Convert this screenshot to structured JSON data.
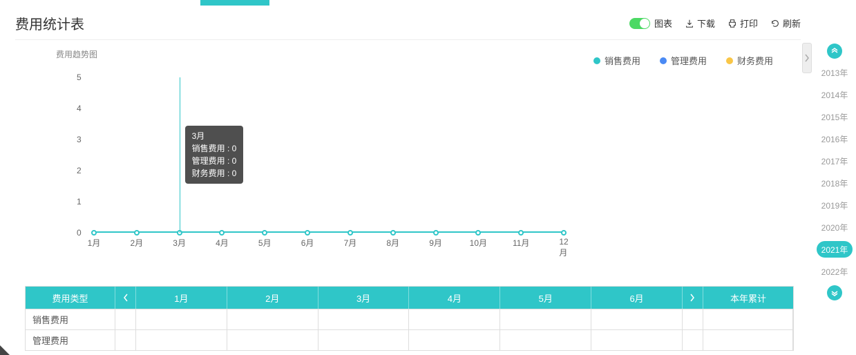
{
  "header": {
    "title": "费用统计表",
    "toggle_label": "图表",
    "download_label": "下载",
    "print_label": "打印",
    "refresh_label": "刷新"
  },
  "chart": {
    "subtitle": "费用趋势图",
    "type": "line",
    "legend": [
      {
        "label": "销售费用",
        "color": "#2fc6c8"
      },
      {
        "label": "管理费用",
        "color": "#4a8af4"
      },
      {
        "label": "财务费用",
        "color": "#f9c647"
      }
    ],
    "x_categories": [
      "1月",
      "2月",
      "3月",
      "4月",
      "5月",
      "6月",
      "7月",
      "8月",
      "9月",
      "10月",
      "11月",
      "12月"
    ],
    "y_ticks": [
      0,
      1,
      2,
      3,
      4,
      5
    ],
    "ylim": [
      0,
      5
    ],
    "series": {
      "销售费用": [
        0,
        0,
        0,
        0,
        0,
        0,
        0,
        0,
        0,
        0,
        0,
        0
      ],
      "管理费用": [
        0,
        0,
        0,
        0,
        0,
        0,
        0,
        0,
        0,
        0,
        0,
        0
      ],
      "财务费用": [
        0,
        0,
        0,
        0,
        0,
        0,
        0,
        0,
        0,
        0,
        0,
        0
      ]
    },
    "axis_color": "#cccccc",
    "tick_font_size": 12,
    "tick_color": "#666666",
    "background_color": "#ffffff",
    "point_radius": 4,
    "line_width": 2,
    "hover_index": 2,
    "tooltip": {
      "title": "3月",
      "rows": [
        {
          "label": "销售费用",
          "value": "0"
        },
        {
          "label": "管理费用",
          "value": "0"
        },
        {
          "label": "财务费用",
          "value": "0"
        }
      ],
      "background": "rgba(60,60,60,0.9)",
      "text_color": "#ffffff"
    }
  },
  "table": {
    "type_header": "费用类型",
    "total_header": "本年累计",
    "visible_months": [
      "1月",
      "2月",
      "3月",
      "4月",
      "5月",
      "6月"
    ],
    "rows": [
      {
        "type": "销售费用",
        "cells": [
          "",
          "",
          "",
          "",
          "",
          ""
        ],
        "total": ""
      },
      {
        "type": "管理费用",
        "cells": [
          "",
          "",
          "",
          "",
          "",
          ""
        ],
        "total": ""
      }
    ],
    "header_bg": "#2fc6c8",
    "header_text_color": "#ffffff",
    "border_color": "#dddddd"
  },
  "year_rail": {
    "years": [
      "2013年",
      "2014年",
      "2015年",
      "2016年",
      "2017年",
      "2018年",
      "2019年",
      "2020年",
      "2021年",
      "2022年"
    ],
    "active": "2021年",
    "button_bg": "#2fc6c8"
  }
}
